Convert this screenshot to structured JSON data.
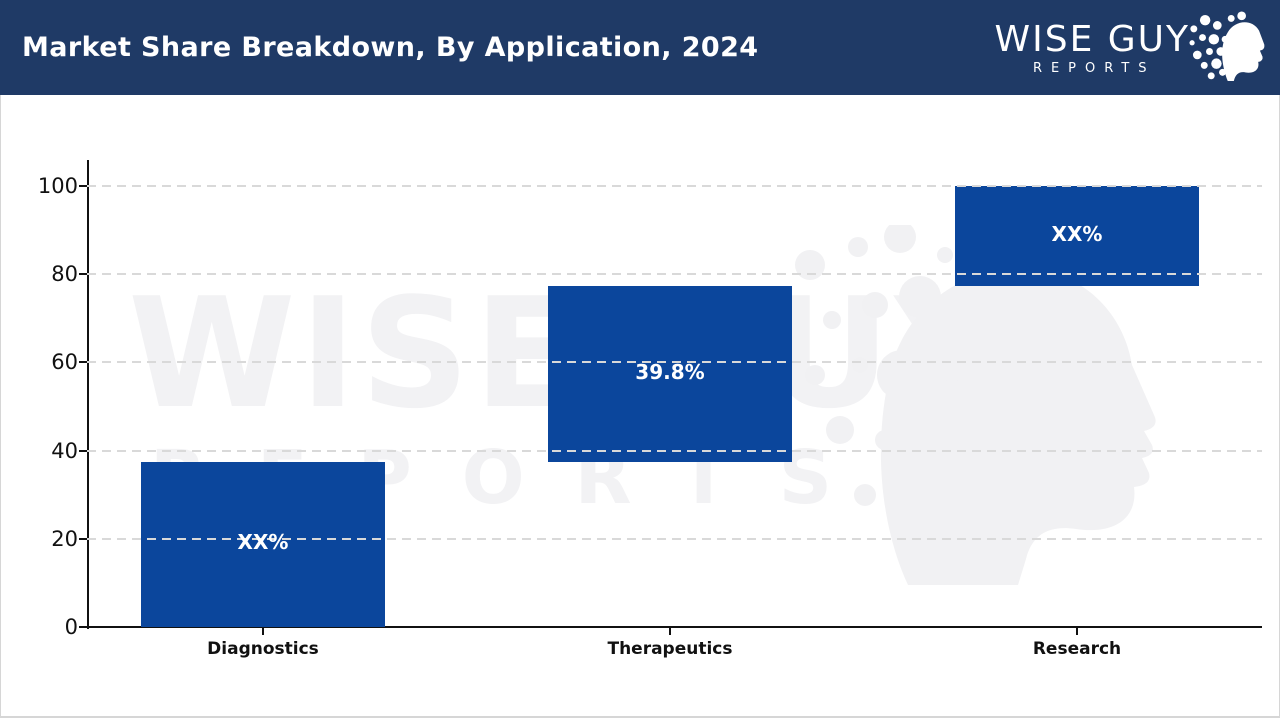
{
  "header": {
    "title": "Market Share Breakdown, By Application, 2024",
    "logo": {
      "brand_line1": "WISE GUY",
      "brand_line2": "REPORTS"
    }
  },
  "watermark": {
    "line1": "WISE GUY",
    "line2": "REPORTS"
  },
  "chart_data": {
    "type": "bar",
    "subtype": "floating-waterfall",
    "title": "Market Share Breakdown, By Application, 2024",
    "categories": [
      "Diagnostics",
      "Therapeutics",
      "Research"
    ],
    "bars": [
      {
        "category": "Diagnostics",
        "start": 0,
        "end": 37.5,
        "label": "XX%"
      },
      {
        "category": "Therapeutics",
        "start": 37.5,
        "end": 77.3,
        "label": "39.8%"
      },
      {
        "category": "Research",
        "start": 77.3,
        "end": 100,
        "label": "XX%"
      }
    ],
    "xlabel": "",
    "ylabel": "",
    "y_ticks": [
      0,
      20,
      40,
      60,
      80,
      100
    ],
    "ylim": [
      0,
      106
    ],
    "grid": "horizontal-dashed",
    "legend": "none",
    "colors": {
      "bar": "#0b469c",
      "bar_label": "#ffffff",
      "grid": "#d9d9d9",
      "axis": "#111111",
      "header_bg": "#1f3a66",
      "watermark": "#f2f2f4"
    }
  }
}
